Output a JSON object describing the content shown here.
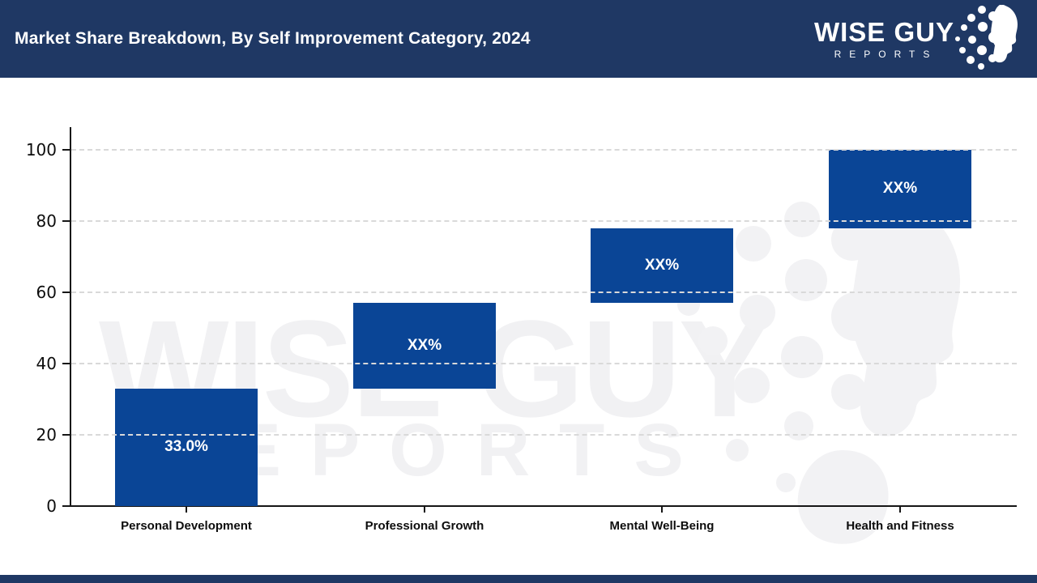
{
  "header": {
    "title": "Market Share Breakdown, By Self Improvement Category, 2024",
    "logo": {
      "line1": "WISE GUY",
      "line2": "REPORTS"
    }
  },
  "watermark": {
    "line1": "WISE GUY",
    "line2": "REPORTS"
  },
  "colors": {
    "header_bg": "#1f3864",
    "bar": "#0a4596",
    "grid": "#d9d9d9",
    "axis": "#161616",
    "watermark": "#f1f1f3",
    "bar_label_text": "#ffffff"
  },
  "chart_data": {
    "type": "bar",
    "subtype": "waterfall",
    "title": "Market Share Breakdown, By Self Improvement Category, 2024",
    "categories": [
      "Personal Development",
      "Professional Growth",
      "Mental Well-Being",
      "Health and Fitness"
    ],
    "segments": [
      {
        "category": "Personal Development",
        "start": 0,
        "end": 33,
        "value": 33,
        "label": "33.0%"
      },
      {
        "category": "Professional Growth",
        "start": 33,
        "end": 57,
        "value": 24,
        "label": "XX%"
      },
      {
        "category": "Mental Well-Being",
        "start": 57,
        "end": 78,
        "value": 21,
        "label": "XX%"
      },
      {
        "category": "Health and Fitness",
        "start": 78,
        "end": 100,
        "value": 22,
        "label": "XX%"
      }
    ],
    "yticks": [
      0,
      20,
      40,
      60,
      80,
      100
    ],
    "ylim": [
      0,
      105
    ],
    "xlabel": "",
    "ylabel": "",
    "grid": "horizontal-dashed",
    "legend": "none"
  }
}
